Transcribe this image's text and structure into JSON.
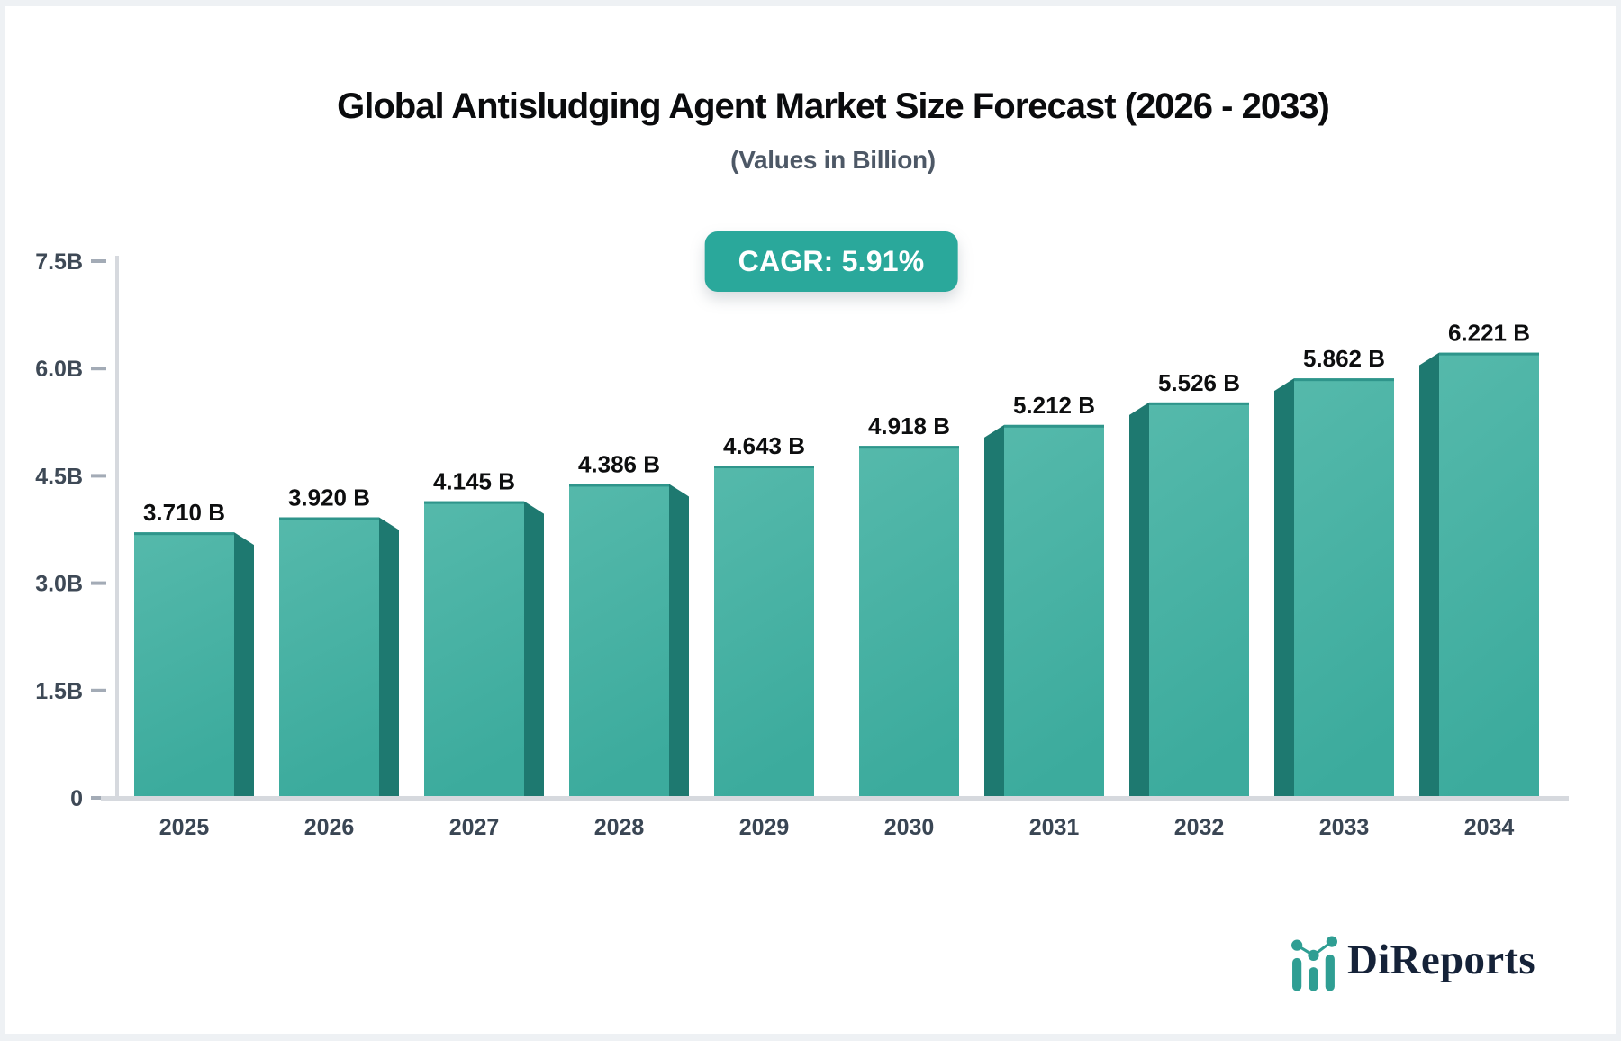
{
  "page": {
    "title": "Global Antisludging Agent Market Size Forecast (2026 - 2033)",
    "subtitle": "(Values in Billion)",
    "cagr_badge": "CAGR: 5.91%"
  },
  "brand": {
    "name": "DiReports",
    "icon": "mini-bar-chart-logo-icon"
  },
  "colors": {
    "badge_bg": "#2AA89B",
    "bar_front_top": "#55B9AB",
    "bar_front_bottom": "#3CAB9D",
    "bar_side": "#1E7970",
    "bar_topline": "#2F958B",
    "axis_line": "#D6D9DE",
    "tick_dash": "#A3ABB6",
    "y_label": "#3E4956",
    "x_label": "#3A4654",
    "value_label": "#0D0E0F",
    "logo_navy": "#152238",
    "logo_teal": "#2F9E93"
  },
  "chart_data": {
    "type": "bar",
    "title": "Global Antisludging Agent Market Size Forecast (2026 - 2033)",
    "subtitle": "(Values in Billion)",
    "annotation": "CAGR: 5.91%",
    "unit": "Billion",
    "categories": [
      "2025",
      "2026",
      "2027",
      "2028",
      "2029",
      "2030",
      "2031",
      "2032",
      "2033",
      "2034"
    ],
    "values": [
      3.71,
      3.92,
      4.145,
      4.386,
      4.643,
      4.918,
      5.212,
      5.526,
      5.862,
      6.221
    ],
    "value_labels": [
      "3.710 B",
      "3.920 B",
      "4.145 B",
      "4.386 B",
      "4.643 B",
      "4.918 B",
      "5.212 B",
      "5.526 B",
      "5.862 B",
      "6.221 B"
    ],
    "y_ticks": [
      {
        "value": 7.5,
        "label": "7.5B"
      },
      {
        "value": 6.0,
        "label": "6.0B"
      },
      {
        "value": 4.5,
        "label": "4.5B"
      },
      {
        "value": 3.0,
        "label": "3.0B"
      },
      {
        "value": 1.5,
        "label": "1.5B"
      },
      {
        "value": 0,
        "label": "0"
      }
    ],
    "ylim": [
      0,
      7.5
    ],
    "grid": false,
    "legend": false,
    "bar_style": "3d-extruded"
  }
}
